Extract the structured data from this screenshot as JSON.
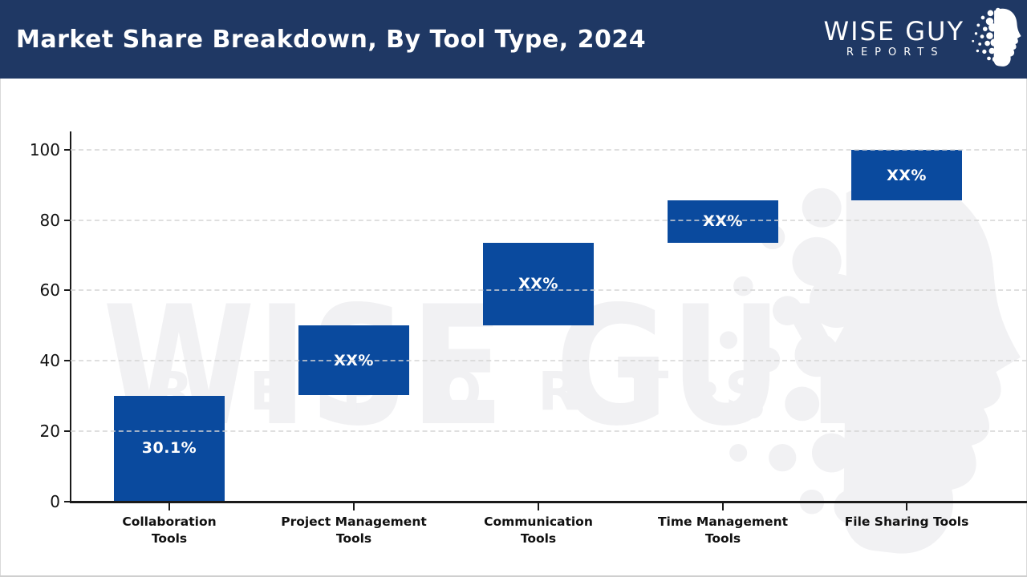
{
  "header": {
    "title": "Market Share Breakdown, By Tool Type, 2024",
    "bg_color": "#1f3864",
    "logo": {
      "line1": "WISE GUY",
      "line2": "REPORTS"
    }
  },
  "watermark": {
    "line1": "WISE GUY",
    "line2": "REPORTS",
    "color": "#f1f1f3"
  },
  "chart_data": {
    "type": "bar",
    "subtype": "waterfall",
    "title": "Market Share Breakdown, By Tool Type, 2024",
    "xlabel": "",
    "ylabel": "",
    "ylim": [
      0,
      105
    ],
    "yticks": [
      0,
      20,
      40,
      60,
      80,
      100
    ],
    "grid": "horizontal-dashed",
    "legend": "none",
    "bar_color": "#0a4a9e",
    "label_color": "#ffffff",
    "categories": [
      "Collaboration Tools",
      "Project Management Tools",
      "Communication Tools",
      "Time Management Tools",
      "File Sharing Tools"
    ],
    "bars": [
      {
        "category": "Collaboration Tools",
        "category_lines": [
          "Collaboration",
          "Tools"
        ],
        "start": 0,
        "end": 30.1,
        "label": "30.1%"
      },
      {
        "category": "Project Management Tools",
        "category_lines": [
          "Project Management",
          "Tools"
        ],
        "start": 30.1,
        "end": 50.1,
        "label": "XX%"
      },
      {
        "category": "Communication Tools",
        "category_lines": [
          "Communication",
          "Tools"
        ],
        "start": 50.1,
        "end": 73.6,
        "label": "XX%"
      },
      {
        "category": "Time Management Tools",
        "category_lines": [
          "Time Management",
          "Tools"
        ],
        "start": 73.6,
        "end": 85.6,
        "label": "XX%"
      },
      {
        "category": "File Sharing Tools",
        "category_lines": [
          "File Sharing Tools"
        ],
        "start": 85.6,
        "end": 100,
        "label": "XX%"
      }
    ]
  }
}
